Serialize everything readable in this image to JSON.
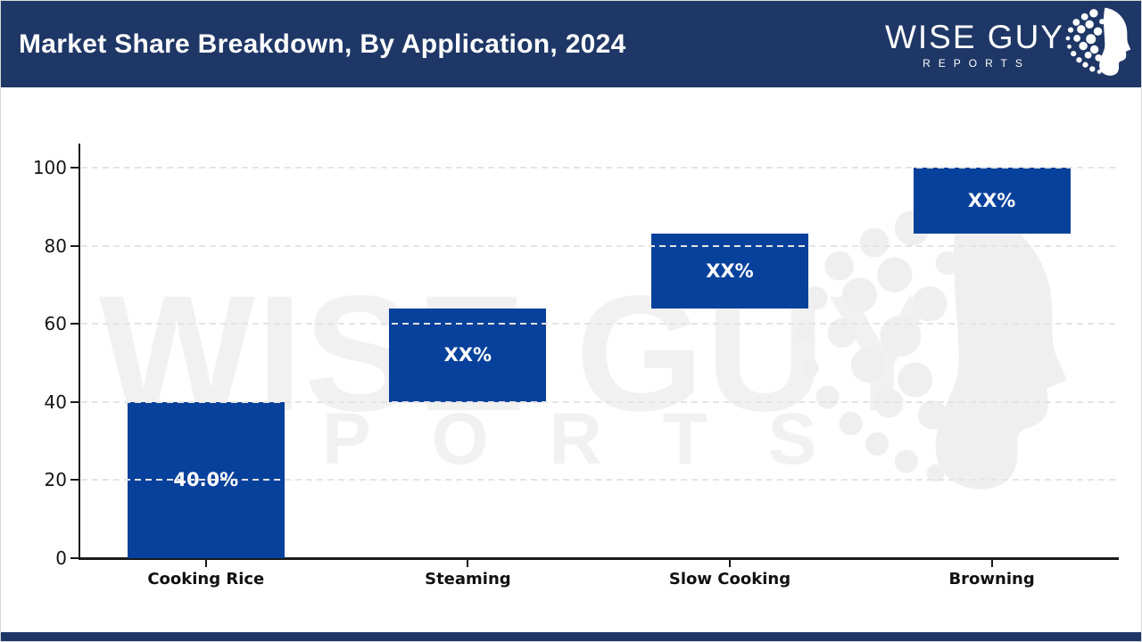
{
  "header": {
    "title": "Market Share Breakdown, By Application, 2024",
    "logo": {
      "line1": "WISE GUY",
      "line2": "REPORTS"
    }
  },
  "watermark": {
    "line1": "WISE GUY",
    "line2": "PORTS"
  },
  "chart_data": {
    "type": "bar",
    "subtype": "waterfall",
    "title": "Market Share Breakdown, By Application, 2024",
    "categories": [
      "Cooking Rice",
      "Steaming",
      "Slow Cooking",
      "Browning"
    ],
    "segments": [
      {
        "category": "Cooking Rice",
        "start": 0,
        "end": 40,
        "label": "40.0%"
      },
      {
        "category": "Steaming",
        "start": 40,
        "end": 64,
        "label": "XX%"
      },
      {
        "category": "Slow Cooking",
        "start": 64,
        "end": 83,
        "label": "XX%"
      },
      {
        "category": "Browning",
        "start": 83,
        "end": 100,
        "label": "XX%"
      }
    ],
    "yticks": [
      0,
      20,
      40,
      60,
      80,
      100
    ],
    "ylim": [
      0,
      106
    ],
    "grid": "dashed horizontal gridlines at y ticks",
    "legend": "none",
    "bar_color": "#07419b"
  },
  "colors": {
    "header_bg": "#1e3766",
    "footer_bg": "#1e3766",
    "bar": "#07419b",
    "axis": "#1a1a1a",
    "gridline": "#e4e4e4",
    "watermark": "#f1f1f1"
  }
}
